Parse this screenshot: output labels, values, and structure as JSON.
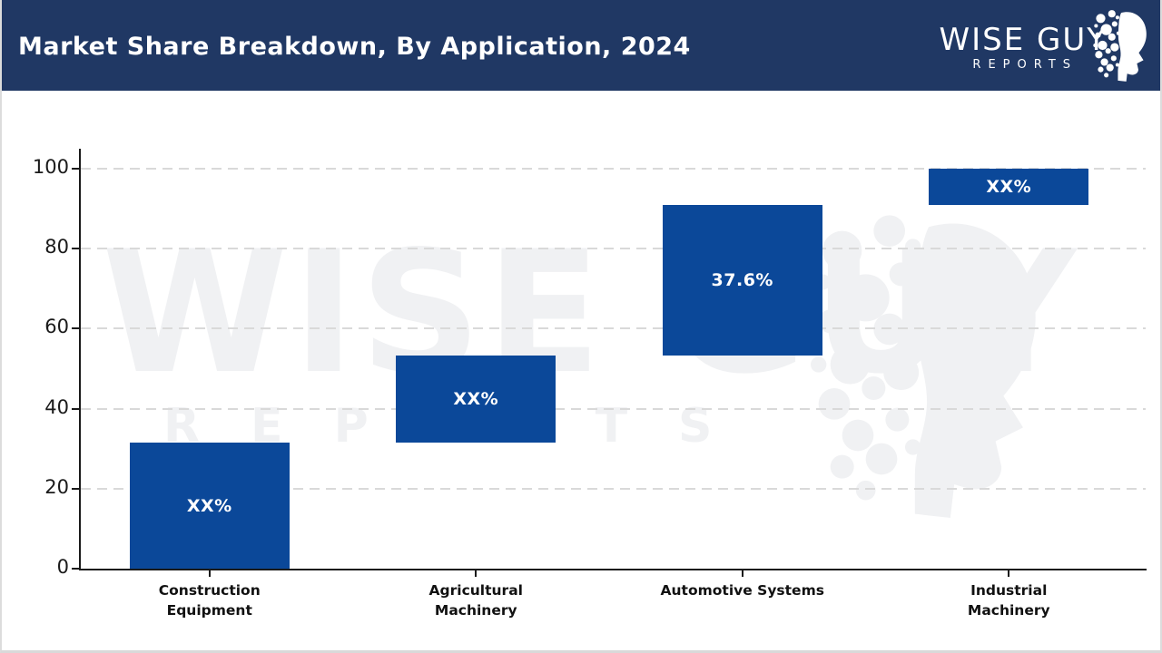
{
  "header": {
    "title": "Market Share Breakdown, By Application, 2024",
    "logo": {
      "line1": "WISE GUY",
      "line2": "REPORTS"
    }
  },
  "watermark": {
    "line1": "WISE GUY",
    "line2": "REPORTS"
  },
  "colors": {
    "header_bg": "#203864",
    "bar": "#0b4899",
    "grid": "#d9d9d9",
    "axis": "#1a1a1a",
    "bar_label": "#ffffff",
    "category_label": "#111111",
    "watermark": "#f0f1f3"
  },
  "chart_data": {
    "type": "bar",
    "subtype": "waterfall-stacked-percentage",
    "title": "Market Share Breakdown, By Application, 2024",
    "xlabel": "",
    "ylabel": "",
    "ylim": [
      0,
      105
    ],
    "yticks": [
      0,
      20,
      40,
      60,
      80,
      100
    ],
    "grid": "horizontal-dashed",
    "legend": "none",
    "categories": [
      "Construction\nEquipment",
      "Agricultural\nMachinery",
      "Automotive Systems",
      "Industrial\nMachinery"
    ],
    "segments": [
      {
        "category": "Construction Equipment",
        "start": 0,
        "end": 31.5,
        "label": "XX%"
      },
      {
        "category": "Agricultural Machinery",
        "start": 31.5,
        "end": 53.3,
        "label": "XX%"
      },
      {
        "category": "Automotive Systems",
        "start": 53.3,
        "end": 90.9,
        "label": "37.6%"
      },
      {
        "category": "Industrial Machinery",
        "start": 90.9,
        "end": 100,
        "label": "XX%"
      }
    ]
  }
}
